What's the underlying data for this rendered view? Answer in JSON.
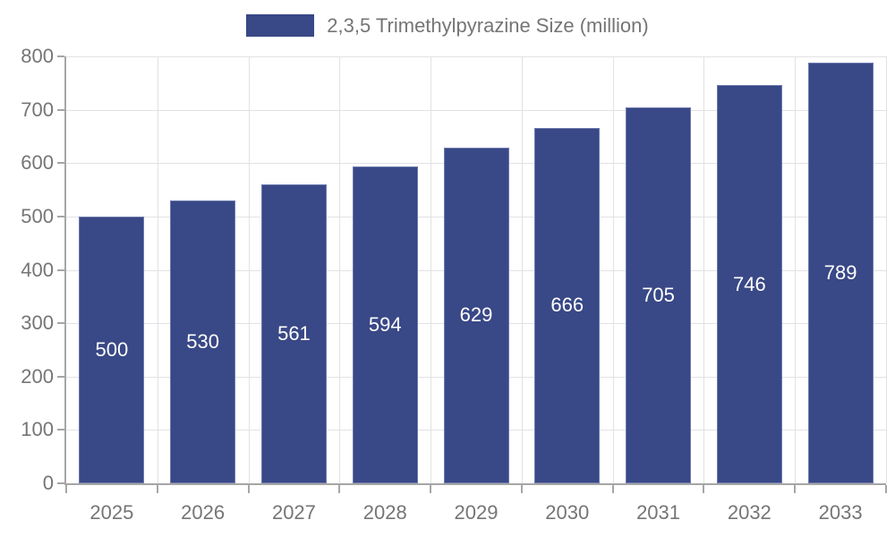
{
  "legend": {
    "label": "2,3,5 Trimethylpyrazine Size (million)"
  },
  "chart_data": {
    "type": "bar",
    "title": "2,3,5 Trimethylpyrazine Size (million)",
    "categories": [
      "2025",
      "2026",
      "2027",
      "2028",
      "2029",
      "2030",
      "2031",
      "2032",
      "2033"
    ],
    "values": [
      500,
      530,
      561,
      594,
      629,
      666,
      705,
      746,
      789
    ],
    "xlabel": "",
    "ylabel": "",
    "ylim": [
      0,
      800
    ],
    "ytick_step": 100,
    "grid": true,
    "legend_position": "top-center",
    "colors": {
      "bar": "#394886",
      "bar_edge": "#6d7aae",
      "bar_label": "#ffffff",
      "axis_line": "#a6a6a6",
      "grid_line": "#e2e2e6",
      "tick_text": "#757575",
      "legend_text": "#757575"
    }
  }
}
